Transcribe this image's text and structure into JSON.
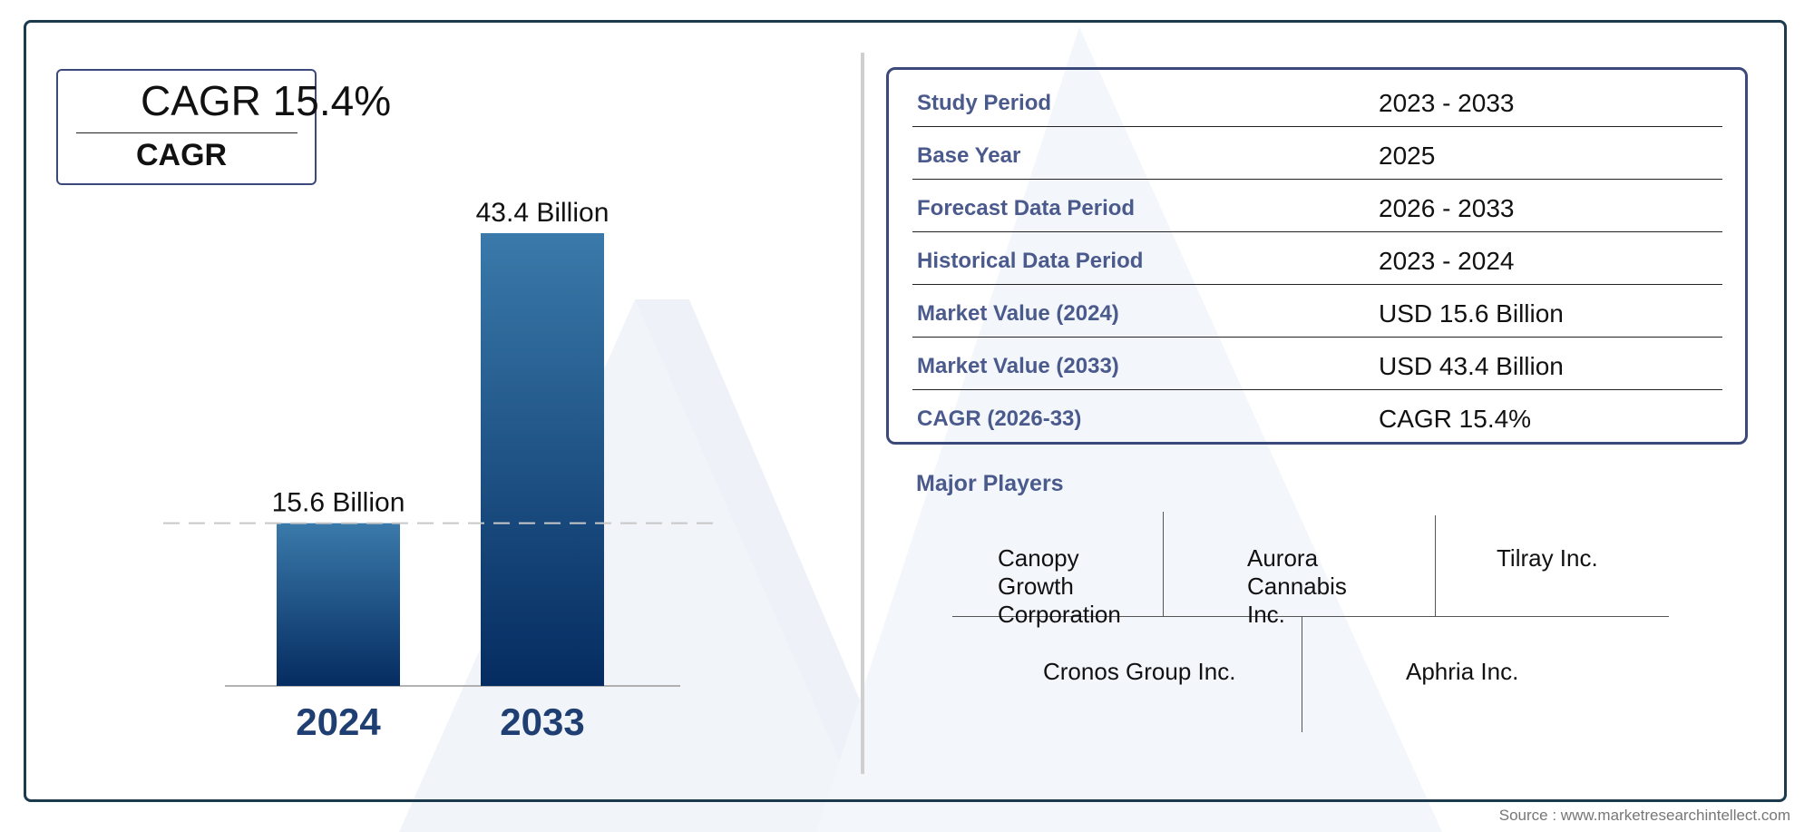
{
  "cagr_box": {
    "value": "CAGR 15.4%",
    "label": "CAGR"
  },
  "chart_data": {
    "type": "bar",
    "categories": [
      "2024",
      "2033"
    ],
    "values": [
      15.6,
      43.4
    ],
    "data_labels": [
      "15.6 Billion",
      "43.4 Billion"
    ],
    "title": "",
    "xlabel": "",
    "ylabel": "",
    "ylim": [
      0,
      43.4
    ],
    "grid": false,
    "colors": {
      "bar_top": "#3a7aaa",
      "bar_bottom": "#052c61",
      "category_text": "#1f3f73"
    }
  },
  "summary_table": {
    "rows": [
      {
        "label": "Study Period",
        "value": "2023 - 2033"
      },
      {
        "label": "Base Year",
        "value": "2025"
      },
      {
        "label": "Forecast Data Period",
        "value": "2026 - 2033"
      },
      {
        "label": "Historical Data Period",
        "value": "2023 - 2024"
      },
      {
        "label": "Market Value (2024)",
        "value": "USD 15.6 Billion"
      },
      {
        "label": "Market Value (2033)",
        "value": "USD 43.4 Billion"
      },
      {
        "label": "CAGR (2026-33)",
        "value": "CAGR 15.4%"
      }
    ]
  },
  "major_players": {
    "title": "Major Players",
    "players": [
      "Canopy Growth Corporation",
      "Aurora Cannabis Inc.",
      "Tilray Inc.",
      "Cronos Group Inc.",
      "Aphria Inc."
    ]
  },
  "source": "Source : www.marketresearchintellect.com",
  "colors": {
    "frame": "#1c3a4e",
    "accent": "#4b5a8c",
    "box_border": "#3b4a7a"
  }
}
